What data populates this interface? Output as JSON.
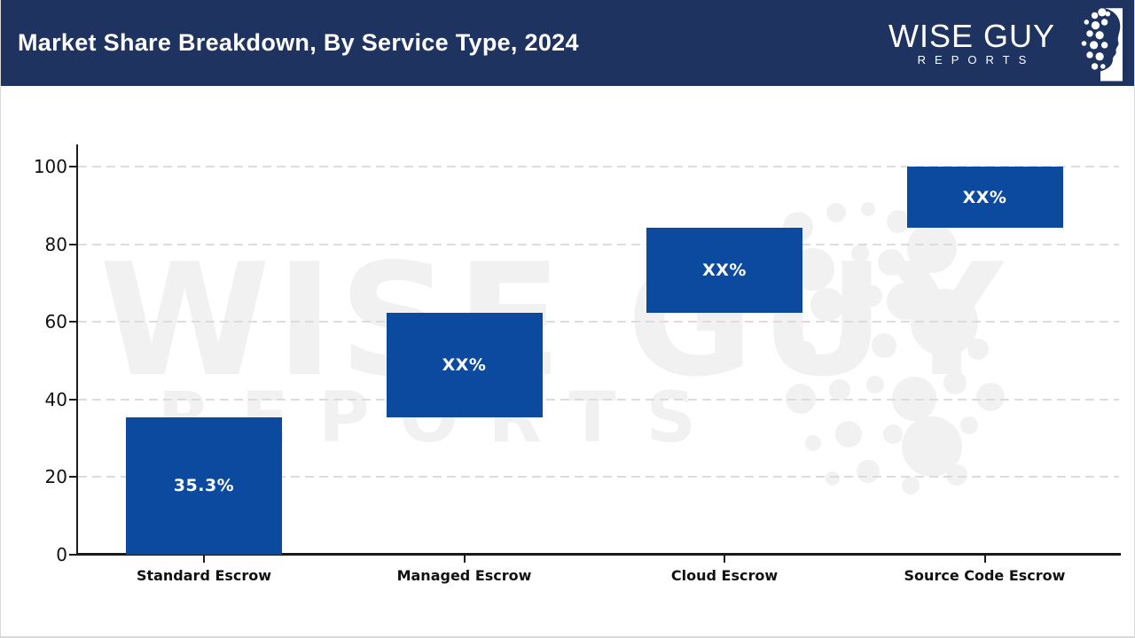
{
  "header": {
    "title": "Market Share Breakdown, By Service Type, 2024",
    "bg_color": "#1e3360",
    "logo": {
      "line1": "WISE GUY",
      "line2": "REPORTS"
    }
  },
  "watermark": {
    "line1": "WISE GUY",
    "line2": "REPORTS"
  },
  "chart_data": {
    "type": "bar",
    "subtype": "waterfall",
    "title": "Market Share Breakdown, By Service Type, 2024",
    "categories": [
      "Standard Escrow",
      "Managed Escrow",
      "Cloud Escrow",
      "Source Code Escrow"
    ],
    "segments": [
      {
        "category": "Standard Escrow",
        "start": 0,
        "end": 35.3,
        "value_label": "35.3%"
      },
      {
        "category": "Managed Escrow",
        "start": 35.3,
        "end": 62.2,
        "value_label": "XX%"
      },
      {
        "category": "Cloud Escrow",
        "start": 62.2,
        "end": 84.2,
        "value_label": "XX%"
      },
      {
        "category": "Source Code Escrow",
        "start": 84.2,
        "end": 100,
        "value_label": "XX%"
      }
    ],
    "xlabel": "",
    "ylabel": "",
    "yticks": [
      0,
      20,
      40,
      60,
      80,
      100
    ],
    "ylim": [
      0,
      106
    ],
    "grid": "horizontal-dashed",
    "legend": "none",
    "bar_color": "#0c4aa0",
    "value_label_color": "#ffffff"
  }
}
